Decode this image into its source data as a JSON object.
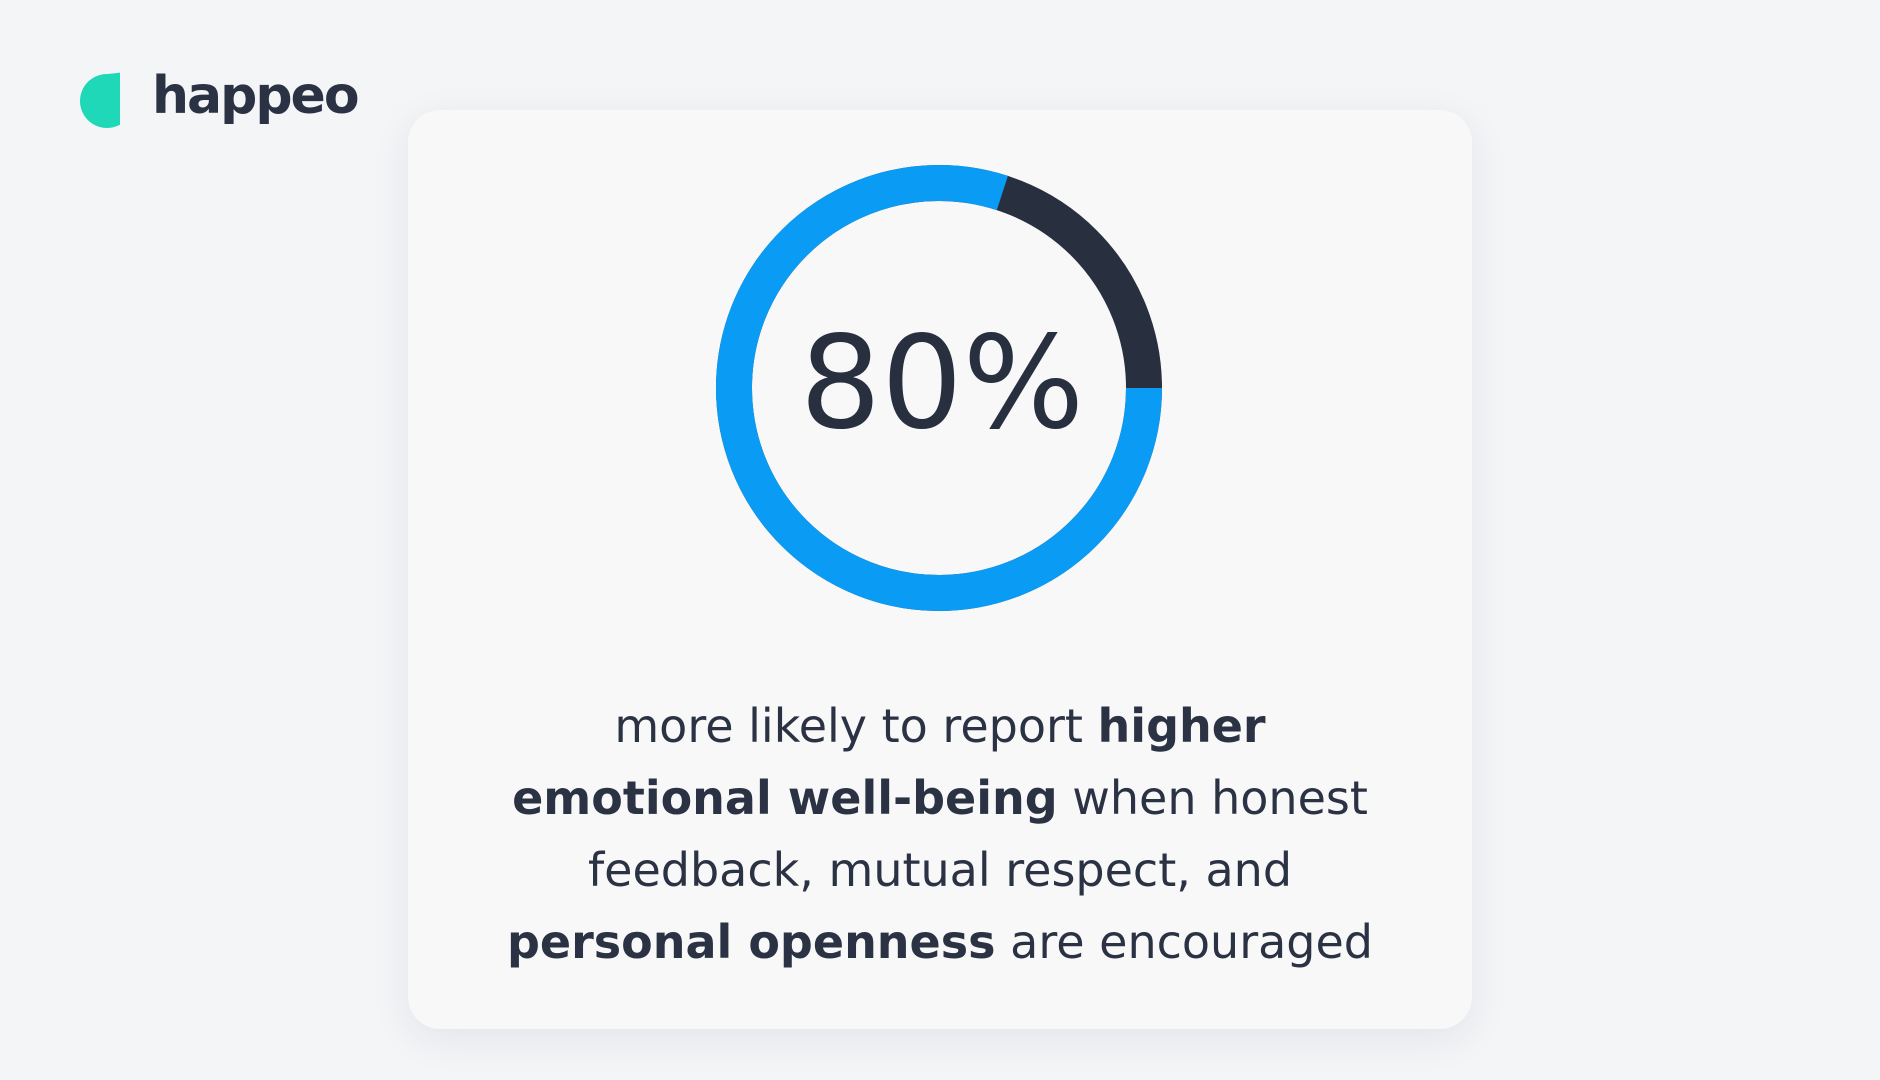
{
  "logo": {
    "text": "happeo",
    "color": "#2a3243",
    "icon_color": "#1ed8b8"
  },
  "chart_data": {
    "type": "donut",
    "values": [
      80
    ],
    "value_labels": [
      "80%"
    ],
    "ylim": [
      0,
      100
    ],
    "color": "#0a9cf5",
    "track_color": "#28303f"
  },
  "description": {
    "lines": [
      [
        {
          "text": "more likely to report ",
          "bold": false
        },
        {
          "text": "higher",
          "bold": true
        }
      ],
      [
        {
          "text": "emotional well-being",
          "bold": true
        },
        {
          "text": " when honest",
          "bold": false
        }
      ],
      [
        {
          "text": "feedback, mutual respect, and",
          "bold": false
        }
      ],
      [
        {
          "text": "personal openness",
          "bold": true
        },
        {
          "text": " are encouraged",
          "bold": false
        }
      ]
    ]
  }
}
